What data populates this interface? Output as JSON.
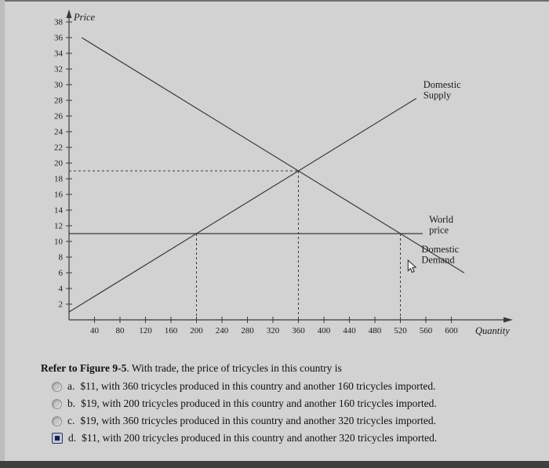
{
  "page": {
    "background": "#d2d2d2",
    "top_edge_color": "#6e6e6e",
    "bottom_edge_color": "#3f3f3f"
  },
  "chart_data": {
    "type": "line",
    "title": "",
    "xlabel": "Quantity",
    "ylabel": "Price",
    "xlim": [
      0,
      640
    ],
    "ylim": [
      0,
      39
    ],
    "grid": false,
    "legend_position": "none",
    "line_color": "#3a3a3a",
    "x_ticks": [
      40,
      80,
      120,
      160,
      200,
      240,
      280,
      320,
      360,
      400,
      440,
      480,
      520,
      560,
      600
    ],
    "y_ticks": [
      2,
      4,
      6,
      8,
      10,
      12,
      14,
      16,
      18,
      20,
      22,
      24,
      26,
      28,
      30,
      32,
      34,
      36,
      38
    ],
    "series": [
      {
        "name": "Domestic Supply",
        "points": [
          [
            0,
            1
          ],
          [
            545,
            28.25
          ]
        ]
      },
      {
        "name": "Domestic Demand",
        "points": [
          [
            20,
            36
          ],
          [
            620,
            6
          ]
        ]
      },
      {
        "name": "World price",
        "points": [
          [
            0,
            11
          ],
          [
            555,
            11
          ]
        ]
      }
    ],
    "equilibrium": {
      "quantity": 360,
      "price": 19
    },
    "world_price": 11,
    "domestic_supply_at_world_price": 200,
    "domestic_demand_at_world_price": 520,
    "imports_at_world_price": 320,
    "dashed_guides": [
      {
        "from": [
          0,
          19
        ],
        "to": [
          360,
          19
        ]
      },
      {
        "from": [
          360,
          19
        ],
        "to": [
          360,
          0
        ]
      },
      {
        "from": [
          200,
          11
        ],
        "to": [
          200,
          0
        ]
      },
      {
        "from": [
          520,
          11
        ],
        "to": [
          520,
          0
        ]
      }
    ],
    "annotations": [
      {
        "id": "domestic-supply-label",
        "lines": [
          "Domestic",
          "Supply"
        ],
        "at": [
          556,
          29.6
        ]
      },
      {
        "id": "world-price-label",
        "lines": [
          "World",
          "price"
        ],
        "at": [
          565,
          12.4
        ]
      },
      {
        "id": "domestic-demand-label",
        "lines": [
          "Domestic",
          "Demand"
        ],
        "at": [
          553,
          8.6
        ]
      }
    ],
    "cursor_at": [
      532,
      7.6
    ]
  },
  "question": {
    "ref_bold": "Refer to Figure 9-5",
    "prompt_rest": ". With trade, the price of tricycles in this country is",
    "options": [
      {
        "letter": "a.",
        "text": "$11, with 360 tricycles produced in this country and another 160 tricycles imported.",
        "selected": false
      },
      {
        "letter": "b.",
        "text": "$19, with 200 tricycles produced in this country and another 160 tricycles imported.",
        "selected": false
      },
      {
        "letter": "c.",
        "text": "$19, with 360 tricycles produced in this country and another 320 tricycles imported.",
        "selected": false
      },
      {
        "letter": "d.",
        "text": "$11, with 200 tricycles produced in this country and another 320 tricycles imported.",
        "selected": true
      }
    ]
  }
}
